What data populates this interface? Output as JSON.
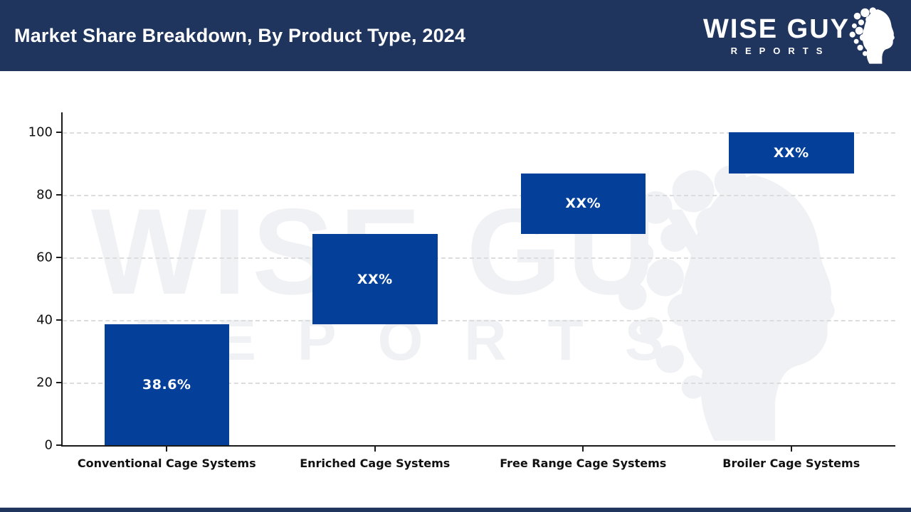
{
  "header": {
    "title": "Market Share Breakdown, By Product Type, 2024",
    "logo": {
      "line1": "WISE GUY",
      "line2": "REPORTS"
    }
  },
  "watermark": {
    "line1": "WISE GUY",
    "line2": "REPORTS"
  },
  "colors": {
    "header_bg": "#1f355e",
    "bar_fill": "#04409a",
    "bar_label": "#ffffff",
    "gridline": "#dcdcdc",
    "axis": "#1a1a1a",
    "tick_text": "#111111",
    "watermark": "#f0f1f4",
    "footer_strip": "#1f355e"
  },
  "chart_data": {
    "type": "bar",
    "subtype": "waterfall",
    "title": "Market Share Breakdown, By Product Type, 2024",
    "categories": [
      "Conventional Cage Systems",
      "Enriched Cage Systems",
      "Free Range Cage Systems",
      "Broiler Cage Systems"
    ],
    "bars": [
      {
        "category": "Conventional Cage Systems",
        "start": 0,
        "end": 38.6,
        "label": "38.6%"
      },
      {
        "category": "Enriched Cage Systems",
        "start": 38.6,
        "end": 67.5,
        "label": "XX%"
      },
      {
        "category": "Free Range Cage Systems",
        "start": 67.5,
        "end": 87.0,
        "label": "XX%"
      },
      {
        "category": "Broiler Cage Systems",
        "start": 87.0,
        "end": 100.0,
        "label": "XX%"
      }
    ],
    "xlabel": "",
    "ylabel": "",
    "yticks": [
      0,
      20,
      40,
      60,
      80,
      100
    ],
    "ylim": [
      0,
      106
    ],
    "grid": "horizontal-dashed",
    "legend": null,
    "bar_width_frac": 0.15
  }
}
